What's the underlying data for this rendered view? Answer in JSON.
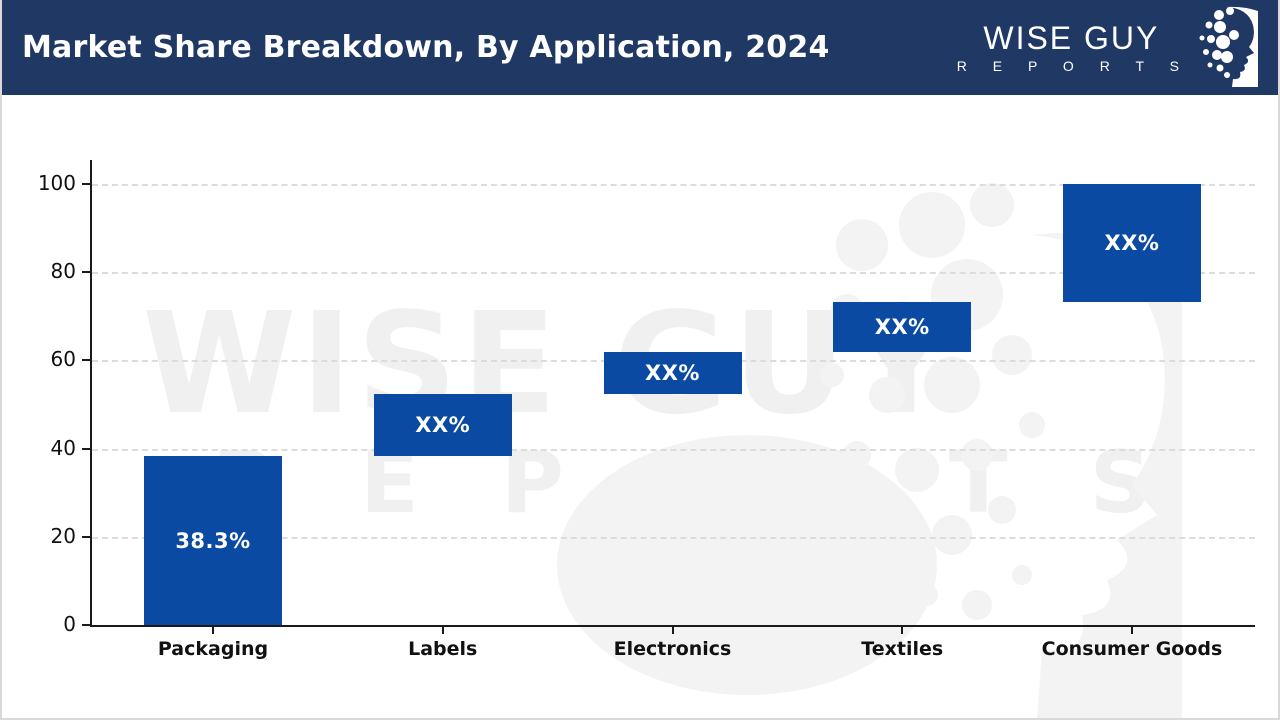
{
  "header": {
    "title": "Market Share Breakdown, By Application, 2024",
    "logo": {
      "line1": "WISE GUY",
      "line2": "R E P O R T S"
    }
  },
  "watermark": {
    "line1": "WISE GUY",
    "line2": "R E P O R T S"
  },
  "chart_data": {
    "type": "bar",
    "subtype": "waterfall",
    "title": "Market Share Breakdown, By Application, 2024",
    "categories": [
      "Packaging",
      "Labels",
      "Electronics",
      "Textiles",
      "Consumer Goods"
    ],
    "segments": [
      {
        "category": "Packaging",
        "start": 0,
        "end": 38.3,
        "label": "38.3%"
      },
      {
        "category": "Labels",
        "start": 38.3,
        "end": 52.4,
        "label": "XX%"
      },
      {
        "category": "Electronics",
        "start": 52.4,
        "end": 62.0,
        "label": "XX%"
      },
      {
        "category": "Textiles",
        "start": 62.0,
        "end": 73.3,
        "label": "XX%"
      },
      {
        "category": "Consumer Goods",
        "start": 73.3,
        "end": 100,
        "label": "XX%"
      }
    ],
    "xlabel": "",
    "ylabel": "",
    "ylim": [
      0,
      100
    ],
    "yticks": [
      0,
      20,
      40,
      60,
      80,
      100
    ],
    "grid": "horizontal-dashed",
    "legend": "none"
  },
  "colors": {
    "header_bg": "#1f3864",
    "bar": "#0a4aa2",
    "bar_label": "#ffffff",
    "grid": "#dcdcdc",
    "watermark_text": "#f0f0f0",
    "watermark_dots": "#f3f3f3",
    "axis": "#1a1a1a"
  }
}
